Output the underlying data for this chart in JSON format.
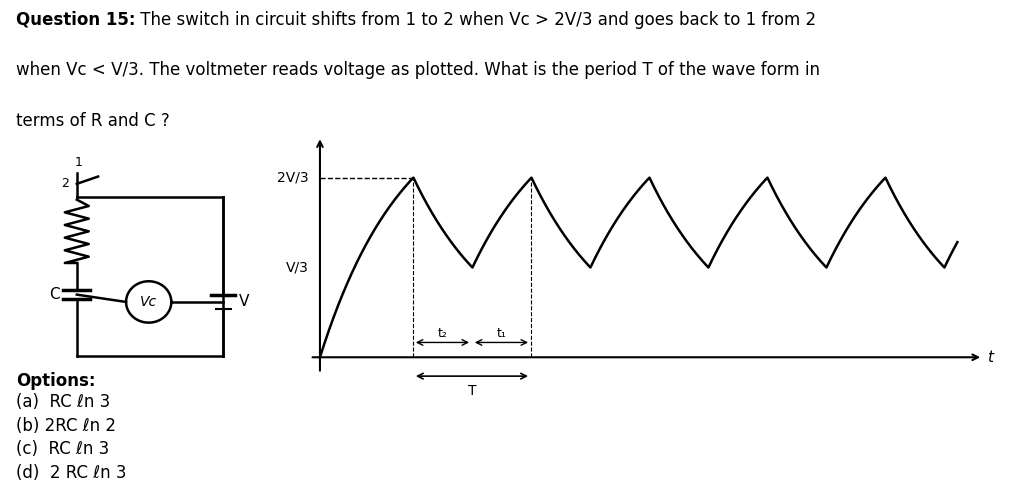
{
  "fig_width": 10.24,
  "fig_height": 4.87,
  "bg_color": "#ffffff",
  "q_bold": "Question 15:",
  "q_rest_line1": " The switch in circuit shifts from 1 to 2 when Vᴄ > 2V/3 and goes back to 1 from 2",
  "q_line2": "when Vᴄ < V/3. The voltmeter reads voltage as plotted. What is the period T of the wave form in",
  "q_line3": "terms of R and C ?",
  "options_title": "Options:",
  "options": [
    "(a)  RC ℓn 3",
    "(b) 2RC ℓn 2",
    "(c)  RC ℓn 3",
    "(d)  2 RC ℓn 3"
  ],
  "label_2V3": "2V/3",
  "label_V3": "V/3",
  "label_t": "t",
  "label_T": "T",
  "label_t2": "t₂",
  "label_t1": "t₁",
  "font_size_text": 12,
  "font_size_opts": 12
}
